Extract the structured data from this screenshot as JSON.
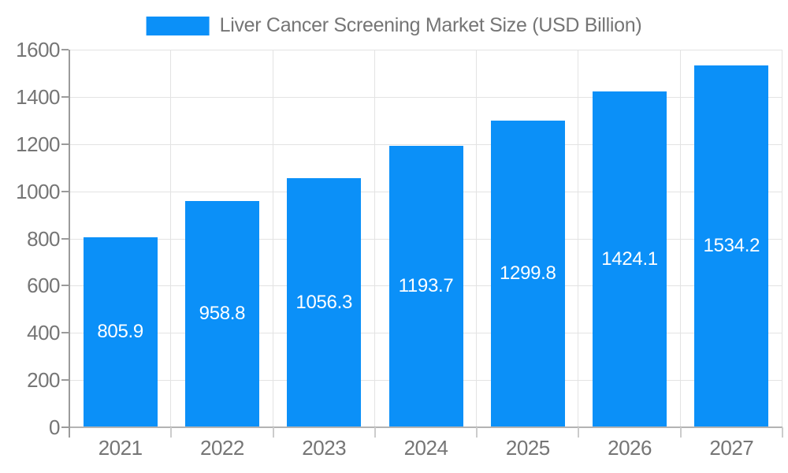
{
  "legend": {
    "label": "Liver Cancer Screening Market Size (USD Billion)"
  },
  "chart_data": {
    "type": "bar",
    "title": "Liver Cancer Screening Market Size (USD Billion)",
    "series_name": "Liver Cancer Screening Market Size (USD Billion)",
    "categories": [
      "2021",
      "2022",
      "2023",
      "2024",
      "2025",
      "2026",
      "2027"
    ],
    "values": [
      805.9,
      958.8,
      1056.3,
      1193.7,
      1299.8,
      1424.1,
      1534.2
    ],
    "xlabel": "",
    "ylabel": "",
    "ylim": [
      0,
      1600
    ],
    "yticks": [
      0,
      200,
      400,
      600,
      800,
      1000,
      1200,
      1400,
      1600
    ],
    "grid": true,
    "legend_position": "top-center",
    "colors": {
      "bar": "#0b90f8",
      "value_label": "#ffffff",
      "axis_text": "#757575",
      "gridline": "#e3e3e3",
      "axis_line": "#9b9b9b",
      "baseline": "#b3b3b3",
      "xtick": "#cccccc"
    }
  }
}
